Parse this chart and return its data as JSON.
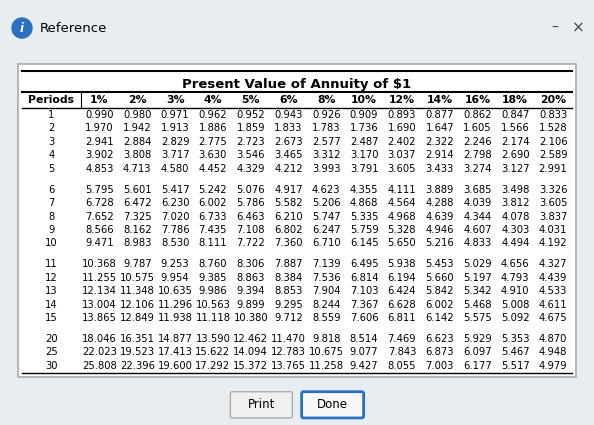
{
  "title": "Present Value of Annuity of $1",
  "columns": [
    "Periods",
    "1%",
    "2%",
    "3%",
    "4%",
    "5%",
    "6%",
    "8%",
    "10%",
    "12%",
    "14%",
    "16%",
    "18%",
    "20%"
  ],
  "rows": [
    [
      1,
      0.99,
      0.98,
      0.971,
      0.962,
      0.952,
      0.943,
      0.926,
      0.909,
      0.893,
      0.877,
      0.862,
      0.847,
      0.833
    ],
    [
      2,
      1.97,
      1.942,
      1.913,
      1.886,
      1.859,
      1.833,
      1.783,
      1.736,
      1.69,
      1.647,
      1.605,
      1.566,
      1.528
    ],
    [
      3,
      2.941,
      2.884,
      2.829,
      2.775,
      2.723,
      2.673,
      2.577,
      2.487,
      2.402,
      2.322,
      2.246,
      2.174,
      2.106
    ],
    [
      4,
      3.902,
      3.808,
      3.717,
      3.63,
      3.546,
      3.465,
      3.312,
      3.17,
      3.037,
      2.914,
      2.798,
      2.69,
      2.589
    ],
    [
      5,
      4.853,
      4.713,
      4.58,
      4.452,
      4.329,
      4.212,
      3.993,
      3.791,
      3.605,
      3.433,
      3.274,
      3.127,
      2.991
    ],
    [
      6,
      5.795,
      5.601,
      5.417,
      5.242,
      5.076,
      4.917,
      4.623,
      4.355,
      4.111,
      3.889,
      3.685,
      3.498,
      3.326
    ],
    [
      7,
      6.728,
      6.472,
      6.23,
      6.002,
      5.786,
      5.582,
      5.206,
      4.868,
      4.564,
      4.288,
      4.039,
      3.812,
      3.605
    ],
    [
      8,
      7.652,
      7.325,
      7.02,
      6.733,
      6.463,
      6.21,
      5.747,
      5.335,
      4.968,
      4.639,
      4.344,
      4.078,
      3.837
    ],
    [
      9,
      8.566,
      8.162,
      7.786,
      7.435,
      7.108,
      6.802,
      6.247,
      5.759,
      5.328,
      4.946,
      4.607,
      4.303,
      4.031
    ],
    [
      10,
      9.471,
      8.983,
      8.53,
      8.111,
      7.722,
      7.36,
      6.71,
      6.145,
      5.65,
      5.216,
      4.833,
      4.494,
      4.192
    ],
    [
      11,
      10.368,
      9.787,
      9.253,
      8.76,
      8.306,
      7.887,
      7.139,
      6.495,
      5.938,
      5.453,
      5.029,
      4.656,
      4.327
    ],
    [
      12,
      11.255,
      10.575,
      9.954,
      9.385,
      8.863,
      8.384,
      7.536,
      6.814,
      6.194,
      5.66,
      5.197,
      4.793,
      4.439
    ],
    [
      13,
      12.134,
      11.348,
      10.635,
      9.986,
      9.394,
      8.853,
      7.904,
      7.103,
      6.424,
      5.842,
      5.342,
      4.91,
      4.533
    ],
    [
      14,
      13.004,
      12.106,
      11.296,
      10.563,
      9.899,
      9.295,
      8.244,
      7.367,
      6.628,
      6.002,
      5.468,
      5.008,
      4.611
    ],
    [
      15,
      13.865,
      12.849,
      11.938,
      11.118,
      10.38,
      9.712,
      8.559,
      7.606,
      6.811,
      6.142,
      5.575,
      5.092,
      4.675
    ],
    [
      20,
      18.046,
      16.351,
      14.877,
      13.59,
      12.462,
      11.47,
      9.818,
      8.514,
      7.469,
      6.623,
      5.929,
      5.353,
      4.87
    ],
    [
      25,
      22.023,
      19.523,
      17.413,
      15.622,
      14.094,
      12.783,
      10.675,
      9.077,
      7.843,
      6.873,
      6.097,
      5.467,
      4.948
    ],
    [
      30,
      25.808,
      22.396,
      19.6,
      17.292,
      15.372,
      13.765,
      11.258,
      9.427,
      8.055,
      7.003,
      6.177,
      5.517,
      4.979
    ]
  ],
  "group_sizes": [
    5,
    5,
    5,
    3
  ],
  "bg_color": "#e8edf2",
  "window_title": "Reference",
  "table_bg": "#ffffff",
  "title_fontsize": 9.5,
  "header_fontsize": 7.8,
  "cell_fontsize": 7.2,
  "period_fontsize": 7.2,
  "button_print": "Print",
  "button_done": "Done",
  "icon_color": "#2a6fc4",
  "done_border_color": "#2a6fc4",
  "print_border_color": "#aaaaaa"
}
